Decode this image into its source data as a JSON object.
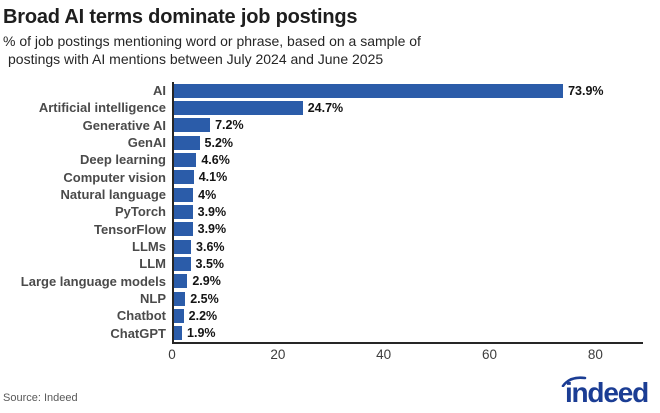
{
  "header": {
    "title": "Broad AI terms dominate job postings",
    "subtitle_line1": "% of job postings mentioning word or phrase, based on a sample of",
    "subtitle_line2": "postings with AI mentions between July 2024 and June 2025"
  },
  "chart_data": {
    "type": "bar",
    "orientation": "horizontal",
    "title": "Broad AI terms dominate job postings",
    "subtitle": "% of job postings mentioning word or phrase, based on a sample of postings with AI mentions between July 2024 and June 2025",
    "categories": [
      "AI",
      "Artificial intelligence",
      "Generative AI",
      "GenAI",
      "Deep learning",
      "Computer vision",
      "Natural language",
      "PyTorch",
      "TensorFlow",
      "LLMs",
      "LLM",
      "Large language models",
      "NLP",
      "Chatbot",
      "ChatGPT"
    ],
    "values": [
      73.9,
      24.7,
      7.2,
      5.2,
      4.6,
      4.1,
      4,
      3.9,
      3.9,
      3.6,
      3.5,
      2.9,
      2.5,
      2.2,
      1.9
    ],
    "value_labels": [
      "73.9%",
      "24.7%",
      "7.2%",
      "5.2%",
      "4.6%",
      "4.1%",
      "4%",
      "3.9%",
      "3.9%",
      "3.6%",
      "3.5%",
      "2.9%",
      "2.5%",
      "2.2%",
      "1.9%"
    ],
    "x_ticks": [
      0,
      20,
      40,
      60,
      80
    ],
    "xlim": [
      0,
      89
    ],
    "xlabel": "",
    "ylabel": "",
    "grid": false,
    "legend": false,
    "bar_color": "#2b5ca9",
    "axis_color": "#262626"
  },
  "footer": {
    "source": "Source: Indeed",
    "logo_text": "indeed",
    "logo_color": "#1b3d94"
  }
}
